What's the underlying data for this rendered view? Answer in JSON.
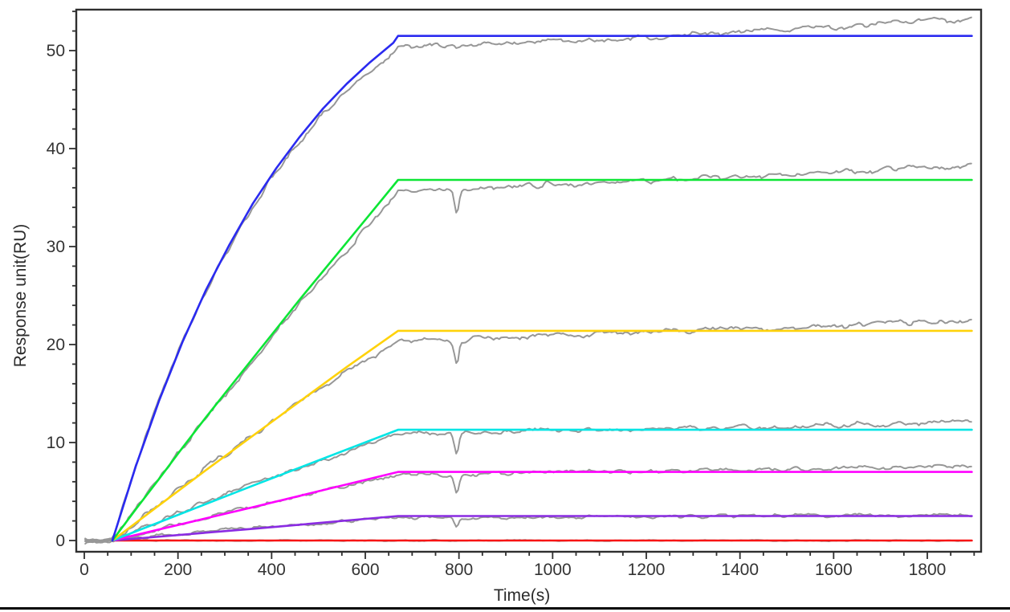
{
  "chart_data": {
    "type": "line",
    "title": "",
    "xlabel": "Time(s)",
    "ylabel": "Response unit(RU)",
    "xlim": [
      -17,
      1915
    ],
    "ylim": [
      -1.15,
      54.2
    ],
    "x_major_ticks": [
      0,
      200,
      400,
      600,
      800,
      1000,
      1200,
      1400,
      1600,
      1800
    ],
    "x_minor_step": 50,
    "x_minor_max": 1900,
    "y_major_ticks": [
      0,
      10,
      20,
      30,
      40,
      50
    ],
    "y_minor_step": 2,
    "y_minor_max": 54,
    "grid": false,
    "legend": "none",
    "injection_start_s": 60,
    "association_end_s": 670,
    "trace_end_s": 1895,
    "artifact_dip_s": 795,
    "data_trace_color": "#979797",
    "series": [
      {
        "id": "red-fit",
        "color": "#f81414",
        "plateau_RU": 0.0,
        "association_points": [
          [
            60,
            0
          ],
          [
            670,
            0
          ]
        ],
        "gray_trace": {
          "corner_offset": 0,
          "mid_bump": 0,
          "post_start": 0,
          "end_value": 0,
          "dip_depth": 0,
          "noise_amp": 0.06,
          "drift_exp": 1.0,
          "seed": 7
        }
      },
      {
        "id": "purple-fit",
        "color": "#8a2be2",
        "plateau_RU": 2.5,
        "association_points": [
          [
            60,
            0
          ],
          [
            360,
            1.2
          ],
          [
            670,
            2.5
          ]
        ],
        "gray_trace": {
          "corner_offset": -0.15,
          "mid_bump": 0.12,
          "post_start": 2.35,
          "end_value": 2.6,
          "dip_depth": 0.95,
          "noise_amp": 0.17,
          "drift_exp": 1.0,
          "seed": 6
        }
      },
      {
        "id": "magenta-fit",
        "color": "#ff00ff",
        "plateau_RU": 7.0,
        "association_points": [
          [
            60,
            0
          ],
          [
            360,
            3.4
          ],
          [
            670,
            7.0
          ]
        ],
        "gray_trace": {
          "corner_offset": -0.35,
          "mid_bump": 0.25,
          "post_start": 6.65,
          "end_value": 7.55,
          "dip_depth": 1.9,
          "noise_amp": 0.2,
          "drift_exp": 1.0,
          "seed": 5
        }
      },
      {
        "id": "cyan-fit",
        "color": "#00e5e5",
        "plateau_RU": 11.3,
        "association_points": [
          [
            60,
            0
          ],
          [
            360,
            5.6
          ],
          [
            670,
            11.3
          ]
        ],
        "gray_trace": {
          "corner_offset": -0.45,
          "mid_bump": 0.3,
          "post_start": 10.85,
          "end_value": 12.05,
          "dip_depth": 2.2,
          "noise_amp": 0.24,
          "drift_exp": 1.0,
          "seed": 4
        }
      },
      {
        "id": "yellow-fit",
        "color": "#ffd20a",
        "plateau_RU": 21.4,
        "association_points": [
          [
            60,
            0
          ],
          [
            160,
            3.6
          ],
          [
            260,
            7.2
          ],
          [
            360,
            10.7
          ],
          [
            460,
            14.2
          ],
          [
            560,
            17.7
          ],
          [
            670,
            21.4
          ]
        ],
        "gray_trace": {
          "corner_offset": -1.1,
          "mid_bump": 0.45,
          "post_start": 20.3,
          "end_value": 22.5,
          "dip_depth": 2.3,
          "noise_amp": 0.28,
          "drift_exp": 1.0,
          "seed": 3
        }
      },
      {
        "id": "green-fit",
        "color": "#0ce635",
        "plateau_RU": 36.8,
        "association_points": [
          [
            60,
            0
          ],
          [
            110,
            3.2
          ],
          [
            160,
            6.3
          ],
          [
            210,
            9.5
          ],
          [
            260,
            12.6
          ],
          [
            310,
            15.6
          ],
          [
            360,
            18.6
          ],
          [
            410,
            21.6
          ],
          [
            460,
            24.6
          ],
          [
            510,
            27.5
          ],
          [
            560,
            30.4
          ],
          [
            610,
            33.3
          ],
          [
            670,
            36.8
          ]
        ],
        "gray_trace": {
          "corner_offset": -1.2,
          "mid_bump": 0.2,
          "post_start": 35.6,
          "end_value": 38.3,
          "dip_depth": 2.4,
          "noise_amp": 0.28,
          "drift_exp": 1.0,
          "seed": 2
        }
      },
      {
        "id": "blue-fit",
        "color": "#2a2af0",
        "plateau_RU": 51.5,
        "association_points": [
          [
            60,
            0
          ],
          [
            110,
            7.6
          ],
          [
            160,
            14.3
          ],
          [
            210,
            20.3
          ],
          [
            260,
            25.6
          ],
          [
            310,
            30.2
          ],
          [
            360,
            34.4
          ],
          [
            410,
            38.0
          ],
          [
            460,
            41.2
          ],
          [
            510,
            44.1
          ],
          [
            560,
            46.6
          ],
          [
            610,
            48.8
          ],
          [
            660,
            50.8
          ],
          [
            670,
            51.5
          ]
        ],
        "gray_trace": {
          "corner_offset": -1.0,
          "mid_bump": 0.1,
          "post_start": 50.5,
          "end_value": 53.3,
          "dip_depth": 0.7,
          "noise_amp": 0.25,
          "drift_exp": 1.4,
          "seed": 1
        }
      }
    ]
  },
  "style_tokens": {
    "axis_color": "#2f2f2f",
    "tick_label_color": "#333333",
    "background": "#ffffff",
    "bottom_bar_color": "#050505"
  }
}
